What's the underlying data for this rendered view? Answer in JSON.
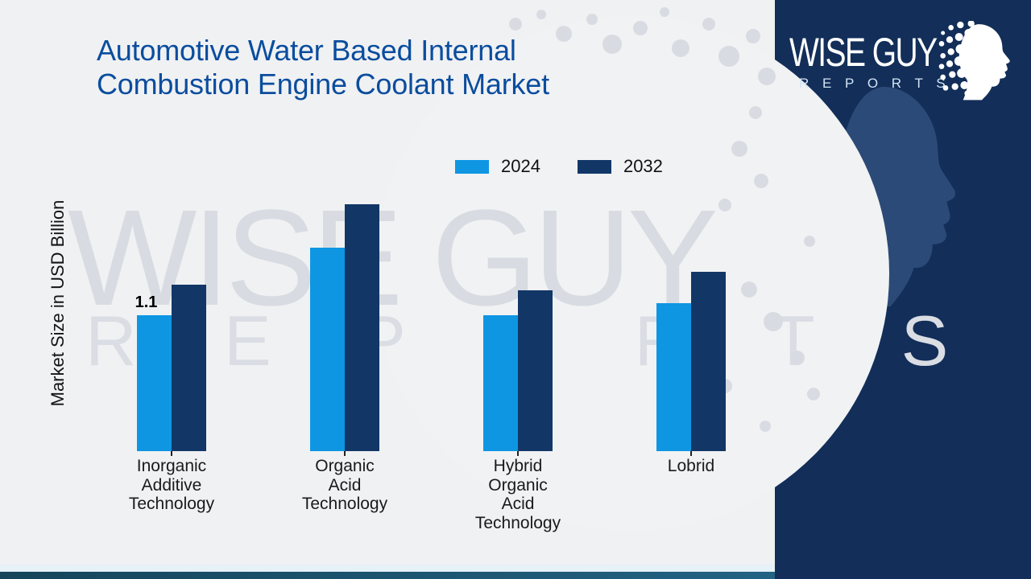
{
  "page": {
    "background": "#f0f1f3"
  },
  "header": {
    "title": "Automotive Water Based Internal Combustion Engine Coolant Market",
    "title_color": "#0a4d9e"
  },
  "logo": {
    "brand": "WISE GUY",
    "sub": "R E P O R T S",
    "panel_color": "#122e59"
  },
  "watermark": {
    "line1": "WISE GUY",
    "line2": "R E P O R T S"
  },
  "legend": [
    {
      "label": "2024",
      "color": "#0e96e3"
    },
    {
      "label": "2032",
      "color": "#123767"
    }
  ],
  "chart_data": {
    "type": "bar",
    "title": "Automotive Water Based Internal Combustion Engine Coolant Market",
    "ylabel": "Market Size in USD Billion",
    "xlabel": "",
    "units": "USD Billion",
    "categories": [
      "Inorganic Additive Technology",
      "Organic Acid Technology",
      "Hybrid Organic Acid Technology",
      "Lobrid"
    ],
    "series": [
      {
        "name": "2024",
        "color": "#0e96e3",
        "values": [
          1.1,
          1.65,
          1.1,
          1.2
        ]
      },
      {
        "name": "2032",
        "color": "#123767",
        "values": [
          1.35,
          2.0,
          1.3,
          1.45
        ]
      }
    ],
    "data_labels": [
      {
        "series": "2024",
        "category": "Inorganic Additive Technology",
        "text": "1.1"
      }
    ],
    "ylim": [
      0,
      2.4
    ],
    "grid": false,
    "legend_position": "top-right",
    "y_axis_ticks_visible": false
  },
  "footer": {
    "strip_colors": [
      "#e6f1f8",
      "#1b5570"
    ]
  }
}
